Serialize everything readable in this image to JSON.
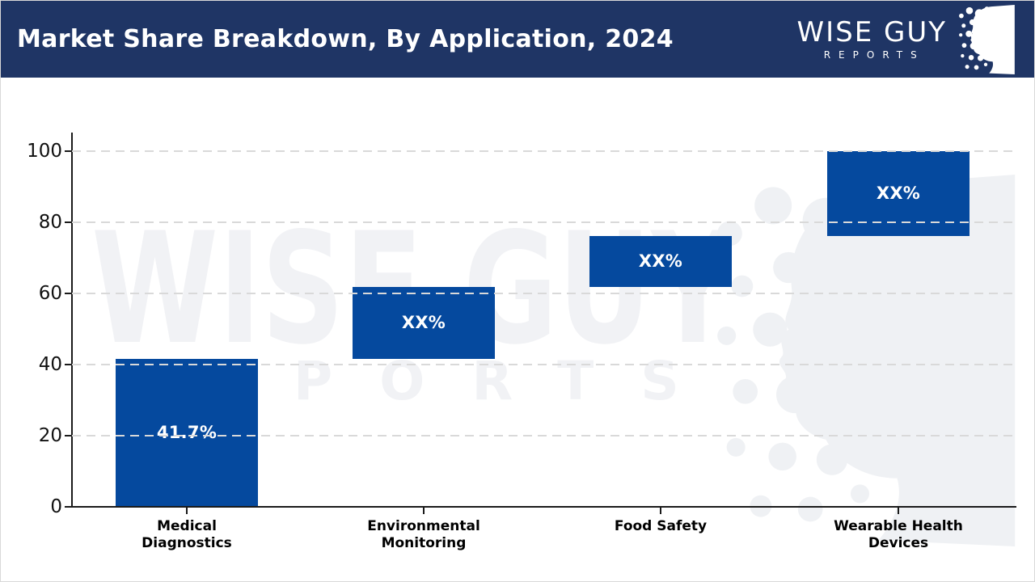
{
  "header": {
    "title": "Market Share Breakdown, By Application, 2024",
    "background": "#1F3565",
    "logo": {
      "line1": "WISE GUY",
      "line2": "REPORTS"
    }
  },
  "watermark": {
    "line1": "WISE GUY",
    "line2": "REPORTS"
  },
  "chart_data": {
    "type": "bar",
    "subtype": "waterfall",
    "title": "Market Share Breakdown, By Application, 2024",
    "categories": [
      "Medical Diagnostics",
      "Environmental Monitoring",
      "Food Safety",
      "Wearable Health Devices"
    ],
    "category_lines": [
      [
        "Medical",
        "Diagnostics"
      ],
      [
        "Environmental",
        "Monitoring"
      ],
      [
        "Food Safety"
      ],
      [
        "Wearable Health",
        "Devices"
      ]
    ],
    "segments": [
      {
        "category": "Medical Diagnostics",
        "start": 0,
        "end": 41.7,
        "label": "41.7%"
      },
      {
        "category": "Environmental Monitoring",
        "start": 41.7,
        "end": 61.9,
        "label": "XX%"
      },
      {
        "category": "Food Safety",
        "start": 61.9,
        "end": 76.2,
        "label": "XX%"
      },
      {
        "category": "Wearable Health Devices",
        "start": 76.2,
        "end": 100,
        "label": "XX%"
      }
    ],
    "xlabel": "",
    "ylabel": "",
    "ylim": [
      0,
      100
    ],
    "yticks": [
      0,
      20,
      40,
      60,
      80,
      100
    ],
    "grid": {
      "axis": "y",
      "style": "dashed",
      "on_top_of_bars": true,
      "color": "#d9d9d9"
    },
    "legend": "none",
    "bar_color": "#05499E",
    "bar_label_color": "#ffffff",
    "axis_color": "#1a1a1a"
  }
}
